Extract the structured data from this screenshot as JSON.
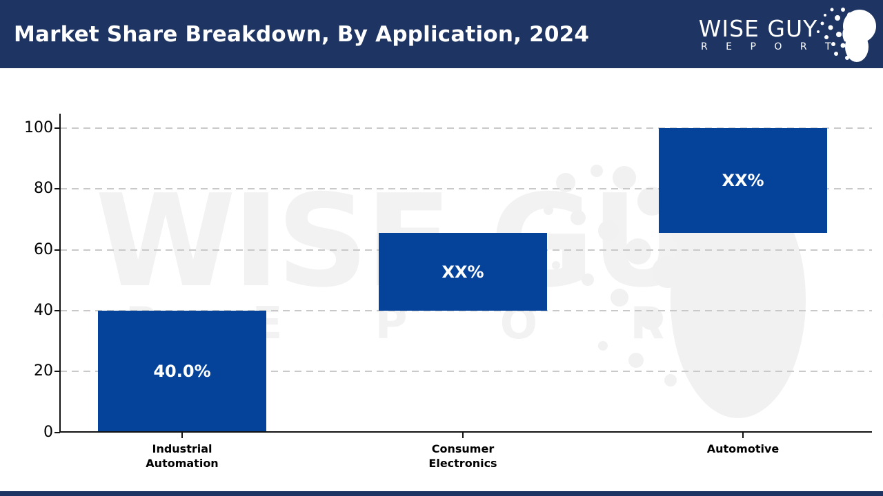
{
  "header": {
    "title": "Market Share Breakdown, By Application, 2024",
    "logo": {
      "wordmark": "WISE GUY",
      "subtext": "R E P O R T S"
    }
  },
  "watermark": {
    "wordmark": "WISE GUY",
    "subtext": "R E P O R T S"
  },
  "colors": {
    "header_bg": "#1e3462",
    "footer_bg": "#1e3462",
    "bar": "#05439b",
    "bar_label": "#ffffff",
    "gridline": "#c9c9c9",
    "axis": "#111111",
    "watermark": "#f2f2f2",
    "title_text": "#ffffff"
  },
  "chart_data": {
    "type": "bar",
    "subtype": "waterfall",
    "title": "Market Share Breakdown, By Application, 2024",
    "categories": [
      "Industrial Automation",
      "Consumer Electronics",
      "Automotive"
    ],
    "category_label_lines": [
      [
        "Industrial",
        "Automation"
      ],
      [
        "Consumer",
        "Electronics"
      ],
      [
        "Automotive"
      ]
    ],
    "segments": [
      {
        "category": "Industrial Automation",
        "start": 0,
        "end": 40,
        "label": "40.0%"
      },
      {
        "category": "Consumer Electronics",
        "start": 40,
        "end": 65.5,
        "label": "XX%"
      },
      {
        "category": "Automotive",
        "start": 65.5,
        "end": 100,
        "label": "XX%"
      }
    ],
    "ylim": [
      0,
      100
    ],
    "yticks": [
      0,
      20,
      40,
      60,
      80,
      100
    ],
    "xlabel": "",
    "ylabel": "",
    "grid": "horizontal-dashed",
    "legend": "none"
  }
}
